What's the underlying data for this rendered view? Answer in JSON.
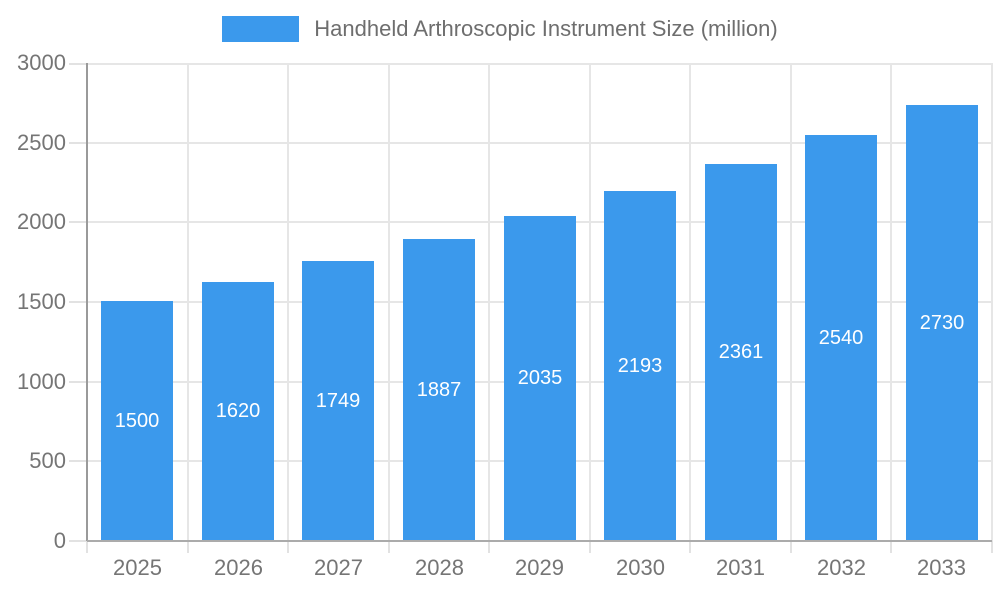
{
  "chart_data": {
    "type": "bar",
    "title": "Handheld Arthroscopic Instrument Size (million)",
    "categories": [
      "2025",
      "2026",
      "2027",
      "2028",
      "2029",
      "2030",
      "2031",
      "2032",
      "2033"
    ],
    "series": [
      {
        "name": "Handheld Arthroscopic Instrument Size (million)",
        "values": [
          1500,
          1620,
          1749,
          1887,
          2035,
          2193,
          2361,
          2540,
          2730
        ]
      }
    ],
    "value_labels": "inside-center",
    "xlabel": "",
    "ylabel": "",
    "ylim": [
      0,
      3000
    ],
    "y_ticks": [
      0,
      500,
      1000,
      1500,
      2000,
      2500,
      3000
    ],
    "grid": "both",
    "legend_position": "top-center",
    "colors": {
      "bar": "#3B99EC",
      "gridline": "#E6E6E6",
      "tick": "#E2E2E2",
      "y_axis_line": "#9A9A9A",
      "x_axis_line": "#ABABAB",
      "axis_label": "#757575",
      "legend_text": "#6E6E6E",
      "value_label": "#FFFFFF"
    }
  }
}
